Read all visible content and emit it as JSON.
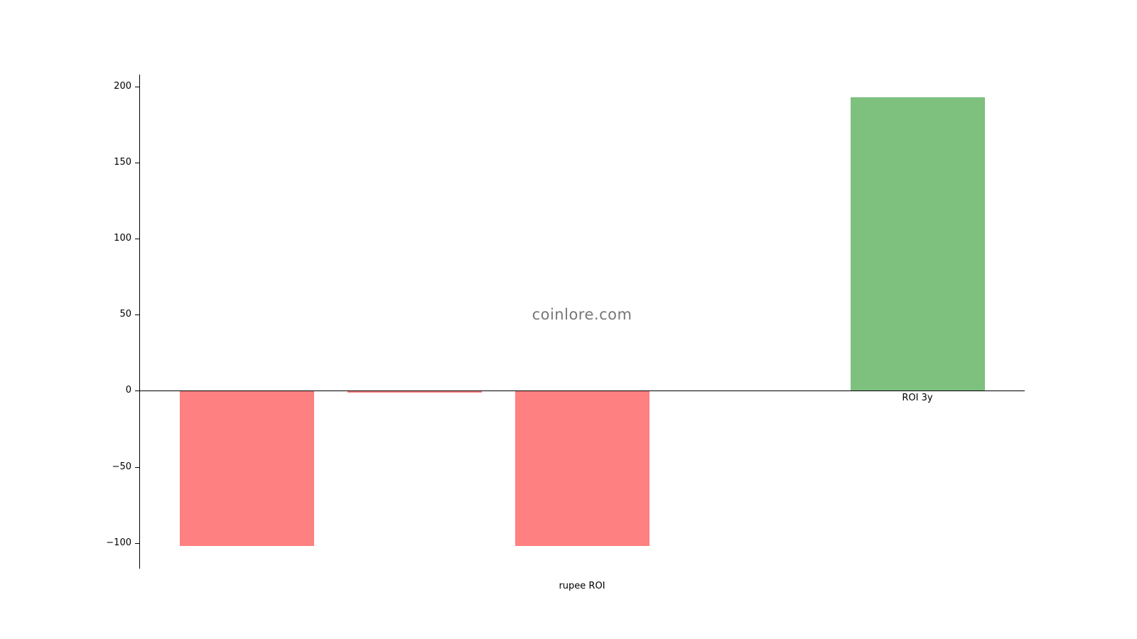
{
  "watermark": {
    "text": "coinlore.com",
    "color": "#777777"
  },
  "chart_data": {
    "type": "bar",
    "categories": [
      "",
      "",
      "",
      "",
      "ROI 3y"
    ],
    "values": [
      -102,
      -1,
      -102,
      0,
      193
    ],
    "colors": [
      "#ff8080",
      "#ff8080",
      "#ff8080",
      "#ff8080",
      "#7ec07e"
    ],
    "negative_color": "#ff8080",
    "positive_color": "#7ec07e",
    "title": "",
    "xlabel": "rupee ROI",
    "ylabel": "",
    "yticks": [
      200,
      150,
      100,
      50,
      0,
      -50,
      -100
    ],
    "ytick_labels": [
      "200",
      "150",
      "100",
      "50",
      "0",
      "−50",
      "−100"
    ],
    "ylim": [
      -117,
      208
    ],
    "xlim": [
      -0.64,
      4.64
    ],
    "bar_width": 0.8,
    "grid": false,
    "legend": null,
    "axis_color": "#000000"
  }
}
